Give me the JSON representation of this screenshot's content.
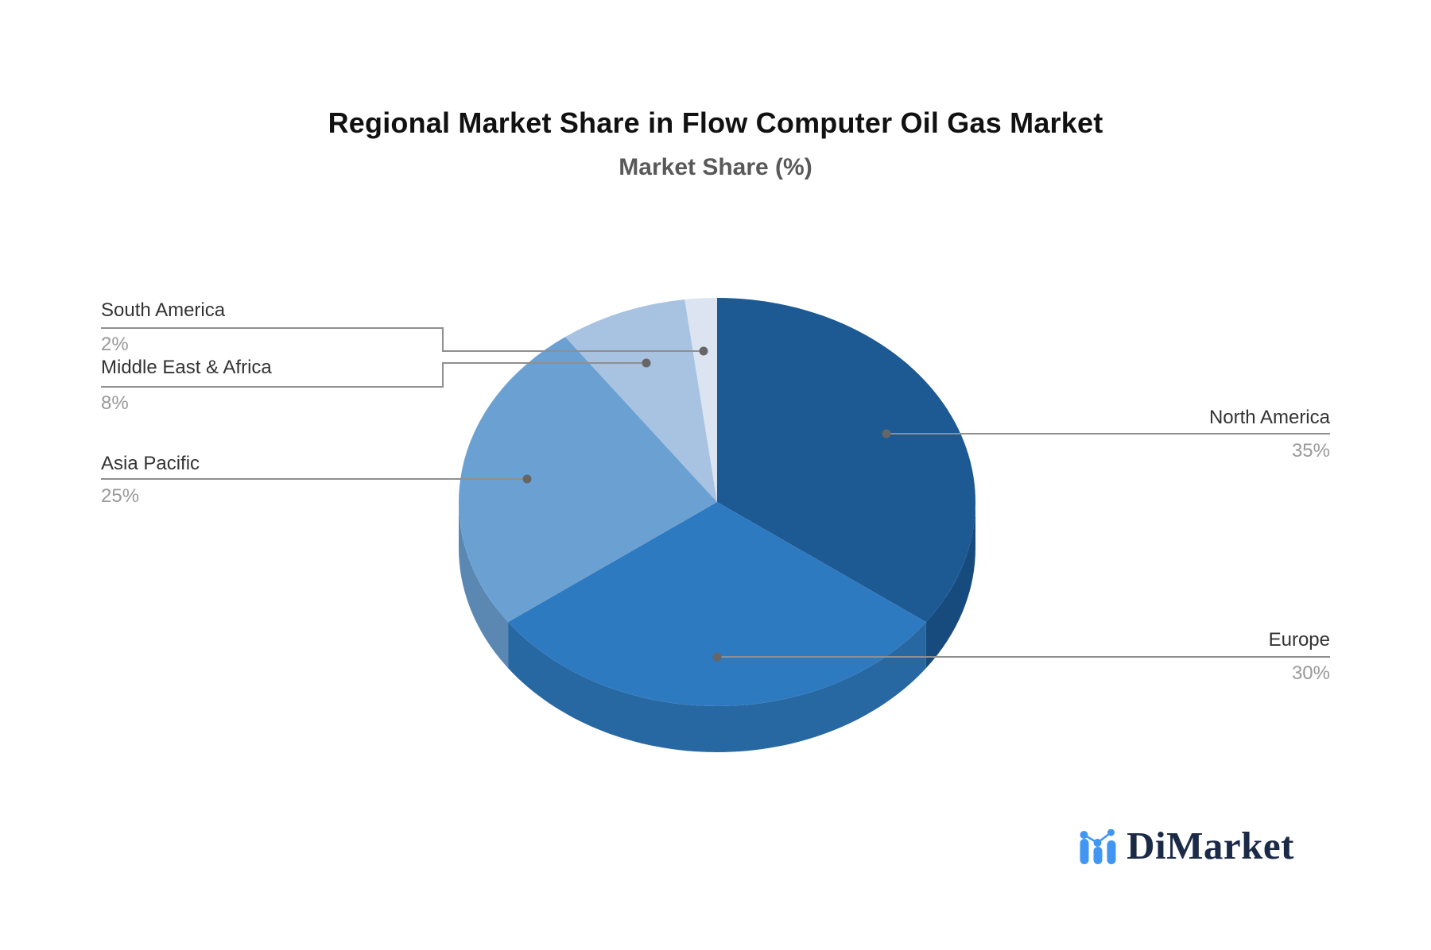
{
  "header": {
    "title": "Regional Market Share in Flow Computer Oil Gas Market",
    "subtitle": "Market Share (%)"
  },
  "chart_data": {
    "type": "pie",
    "title": "Regional Market Share in Flow Computer Oil Gas Market",
    "subtitle": "Market Share (%)",
    "unit": "%",
    "start_angle_deg": 0,
    "clockwise": true,
    "style": "3d-pie",
    "legend_position": "leader-line-labels",
    "series": [
      {
        "label": "North America",
        "value": 35,
        "pct": "35%",
        "color": "#1d5a94",
        "side_color": "#174b7e"
      },
      {
        "label": "Europe",
        "value": 30,
        "pct": "30%",
        "color": "#2e7ac0",
        "side_color": "#2768a3"
      },
      {
        "label": "Asia Pacific",
        "value": 25,
        "pct": "25%",
        "color": "#6ba0d3",
        "side_color": "#5b88b3"
      },
      {
        "label": "Middle East & Africa",
        "value": 8,
        "pct": "8%",
        "color": "#a7c3e1",
        "side_color": "#8faec9"
      },
      {
        "label": "South America",
        "value": 2,
        "pct": "2%",
        "color": "#dbe4f0",
        "side_color": "#c3cfdd"
      }
    ],
    "leader_line_color": "#8f8f8f",
    "leader_dot_color": "#666666"
  },
  "branding": {
    "logo_text": "DiMarket",
    "logo_color": "#4196f1"
  }
}
